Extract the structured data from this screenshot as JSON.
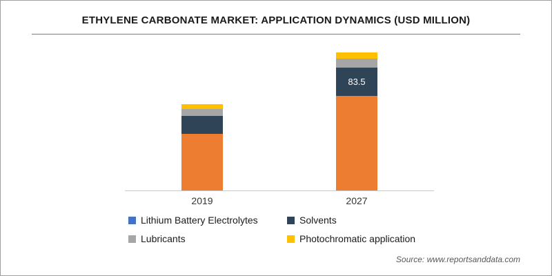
{
  "colors": {
    "accent": "#e0592a",
    "axis_line": "#c9c9c9"
  },
  "source": {
    "text": "Source: www.reportsanddata.com"
  },
  "chart_data": {
    "type": "bar",
    "stacked": true,
    "title": "ETHYLENE CARBONATE MARKET: APPLICATION DYNAMICS (USD MILLION)",
    "categories": [
      "2019",
      "2027"
    ],
    "series": [
      {
        "name": "Lithium Battery Electrolytes",
        "color": "#ED7D31",
        "values": [
          167,
          279
        ],
        "labels": [
          null,
          null
        ]
      },
      {
        "name": "Solvents",
        "color": "#2F4457",
        "values": [
          53,
          83.5
        ],
        "labels": [
          null,
          "83.5"
        ]
      },
      {
        "name": "Lubricants",
        "color": "#A6A6A6",
        "values": [
          20,
          26.5
        ],
        "labels": [
          null,
          null
        ]
      },
      {
        "name": "Photochromatic application",
        "color": "#FFC000",
        "values": [
          14,
          18
        ],
        "labels": [
          null,
          null
        ]
      }
    ],
    "legend": [
      {
        "label": "Lithium Battery Electrolytes",
        "color": "#4472C4"
      },
      {
        "label": "Solvents",
        "color": "#2F4457"
      },
      {
        "label": "Lubricants",
        "color": "#A6A6A6"
      },
      {
        "label": "Photochromatic application",
        "color": "#FFC000"
      }
    ],
    "legend_position": "bottom",
    "grid": false,
    "xlabel": "",
    "ylabel": "",
    "data_labels": [
      {
        "category": "2027",
        "series": "Solvents",
        "text": "83.5"
      }
    ]
  }
}
